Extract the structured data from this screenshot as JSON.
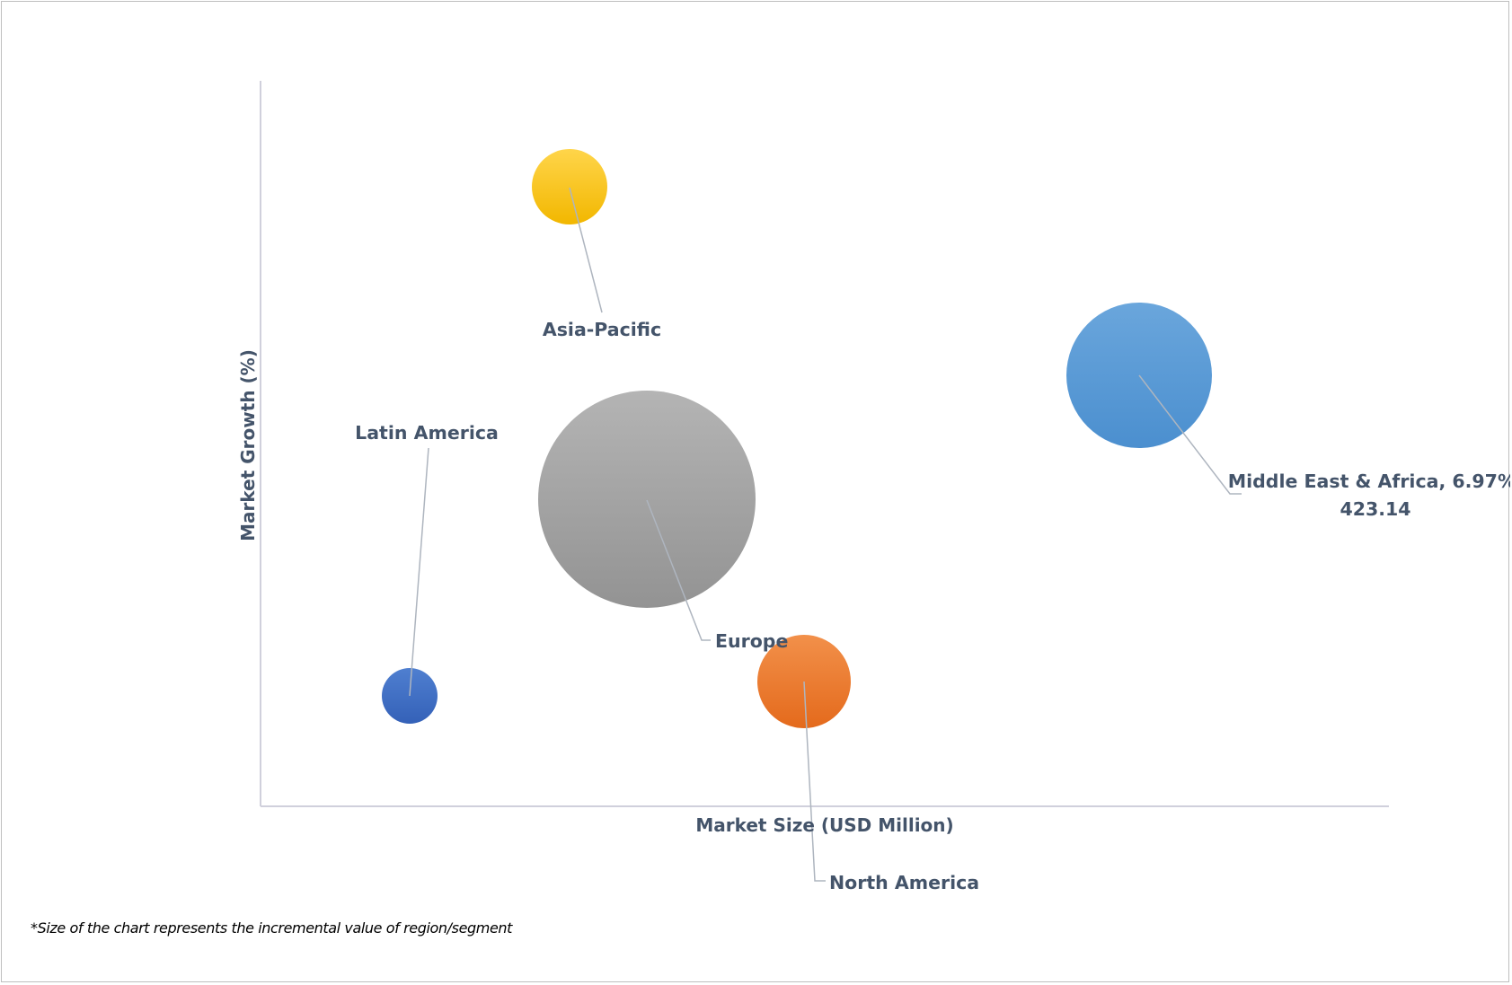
{
  "chart_data": {
    "type": "bubble",
    "xlabel": "Market Size (USD Million)",
    "ylabel": "Market Growth (%)",
    "footnote": "*Size of the chart represents the incremental value of region/segment",
    "series": [
      {
        "name": "Asia-Pacific",
        "label": "Asia-Pacific",
        "color": "#ffc000"
      },
      {
        "name": "Latin America",
        "label": "Latin America",
        "color": "#4472c4"
      },
      {
        "name": "Europe",
        "label": "Europe",
        "color": "#a5a5a5"
      },
      {
        "name": "North America",
        "label": "North America",
        "color": "#ed7d31"
      },
      {
        "name": "Middle East & Africa",
        "label_line1": "Middle East & Africa, 6.97%,",
        "label_line2": "423.14",
        "growth_pct": 6.97,
        "market_size": 423.14,
        "color": "#5b9bd5"
      }
    ]
  }
}
